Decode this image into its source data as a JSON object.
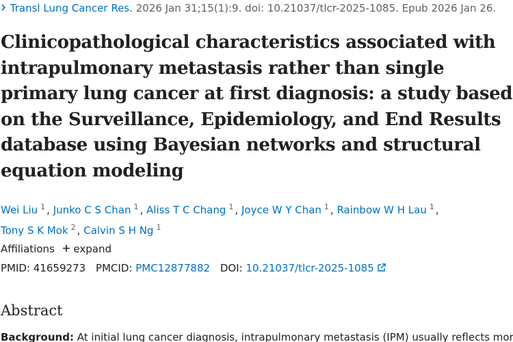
{
  "citation": {
    "journal": "Transl Lung Cancer Res.",
    "details": "2026 Jan 31;15(1):9. doi: 10.21037/tlcr-2025-1085. Epub 2026 Jan 26."
  },
  "title_lines": [
    "Clinicopathological characteristics associated with",
    "intrapulmonary metastasis rather than single",
    "primary lung cancer at first diagnosis: a study based",
    "on the Surveillance, Epidemiology, and End Results",
    "database using Bayesian networks and structural",
    "equation modeling"
  ],
  "authors": {
    "separator": ",",
    "list": [
      {
        "name": "Wei Liu",
        "affiliation": 1
      },
      {
        "name": "Junko C S Chan",
        "affiliation": 1
      },
      {
        "name": "Aliss T C Chang",
        "affiliation": 1
      },
      {
        "name": "Joyce W Y Chan",
        "affiliation": 1
      },
      {
        "name": "Rainbow W H Lau",
        "affiliation": 1
      },
      {
        "name": "Tony S K Mok",
        "affiliation": 2
      },
      {
        "name": "Calvin S H Ng",
        "affiliation": 1
      }
    ]
  },
  "affiliations": {
    "label": "Affiliations",
    "toggle": "expand"
  },
  "identifiers": {
    "pmid_label": "PMID:",
    "pmid": "41659273",
    "pmcid_label": "PMCID:",
    "pmcid": "PMC12877882",
    "doi_label": "DOI:",
    "doi": "10.21037/tlcr-2025-1085"
  },
  "abstract": {
    "heading": "Abstract",
    "background_label": "Background:",
    "background_text": "At initial lung cancer diagnosis, intrapulmonary metastasis (IPM) usually reflects more"
  }
}
